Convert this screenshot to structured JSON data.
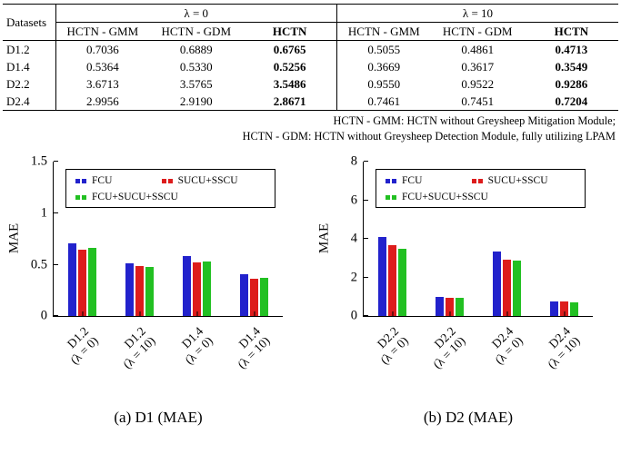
{
  "table": {
    "corner_header": "Datasets",
    "groups": [
      {
        "label": "λ = 0",
        "columns": [
          "HCTN - GMM",
          "HCTN - GDM",
          "HCTN"
        ]
      },
      {
        "label": "λ = 10",
        "columns": [
          "HCTN - GMM",
          "HCTN - GDM",
          "HCTN"
        ]
      }
    ],
    "rows": [
      {
        "dataset": "D1.2",
        "values": [
          "0.7036",
          "0.6889",
          "0.6765",
          "0.5055",
          "0.4861",
          "0.4713"
        ]
      },
      {
        "dataset": "D1.4",
        "values": [
          "0.5364",
          "0.5330",
          "0.5256",
          "0.3669",
          "0.3617",
          "0.3549"
        ]
      },
      {
        "dataset": "D2.2",
        "values": [
          "3.6713",
          "3.5765",
          "3.5486",
          "0.9550",
          "0.9522",
          "0.9286"
        ]
      },
      {
        "dataset": "D2.4",
        "values": [
          "2.9956",
          "2.9190",
          "2.8671",
          "0.7461",
          "0.7451",
          "0.7204"
        ]
      }
    ],
    "note_line1": "HCTN - GMM: HCTN without Greysheep Mitigation Module;",
    "note_line2": "HCTN - GDM: HCTN without Greysheep Detection Module, fully utilizing LPAM"
  },
  "chart_data": [
    {
      "type": "bar",
      "caption": "(a) D1 (MAE)",
      "ylabel": "MAE",
      "ylim": [
        0,
        1.5
      ],
      "yticks": [
        {
          "v": 0,
          "label": "0"
        },
        {
          "v": 0.5,
          "label": "0.5"
        },
        {
          "v": 1,
          "label": "1"
        },
        {
          "v": 1.5,
          "label": "1.5"
        }
      ],
      "categories": [
        [
          "D1.2",
          "(λ = 0)"
        ],
        [
          "D1.2",
          "(λ = 10)"
        ],
        [
          "D1.4",
          "(λ = 0)"
        ],
        [
          "D1.4",
          "(λ = 10)"
        ]
      ],
      "series": [
        {
          "name": "FCU",
          "color": "#2222cc",
          "values": [
            0.71,
            0.51,
            0.58,
            0.41
          ]
        },
        {
          "name": "SUCU+SSCU",
          "color": "#dd1c1c",
          "values": [
            0.65,
            0.49,
            0.52,
            0.36
          ]
        },
        {
          "name": "FCU+SUCU+SSCU",
          "color": "#22c022",
          "values": [
            0.66,
            0.48,
            0.53,
            0.37
          ]
        }
      ],
      "legend_position": "upper left",
      "grid": false
    },
    {
      "type": "bar",
      "caption": "(b) D2 (MAE)",
      "ylabel": "MAE",
      "ylim": [
        0,
        8
      ],
      "yticks": [
        {
          "v": 0,
          "label": "0"
        },
        {
          "v": 2,
          "label": "2"
        },
        {
          "v": 4,
          "label": "4"
        },
        {
          "v": 6,
          "label": "6"
        },
        {
          "v": 8,
          "label": "8"
        }
      ],
      "categories": [
        [
          "D2.2",
          "(λ = 0)"
        ],
        [
          "D2.2",
          "(λ = 10)"
        ],
        [
          "D2.4",
          "(λ = 0)"
        ],
        [
          "D2.4",
          "(λ = 10)"
        ]
      ],
      "series": [
        {
          "name": "FCU",
          "color": "#2222cc",
          "values": [
            4.1,
            1.0,
            3.35,
            0.78
          ]
        },
        {
          "name": "SUCU+SSCU",
          "color": "#dd1c1c",
          "values": [
            3.7,
            0.95,
            2.95,
            0.76
          ]
        },
        {
          "name": "FCU+SUCU+SSCU",
          "color": "#22c022",
          "values": [
            3.5,
            0.93,
            2.9,
            0.72
          ]
        }
      ],
      "legend_position": "upper left",
      "grid": false
    }
  ]
}
